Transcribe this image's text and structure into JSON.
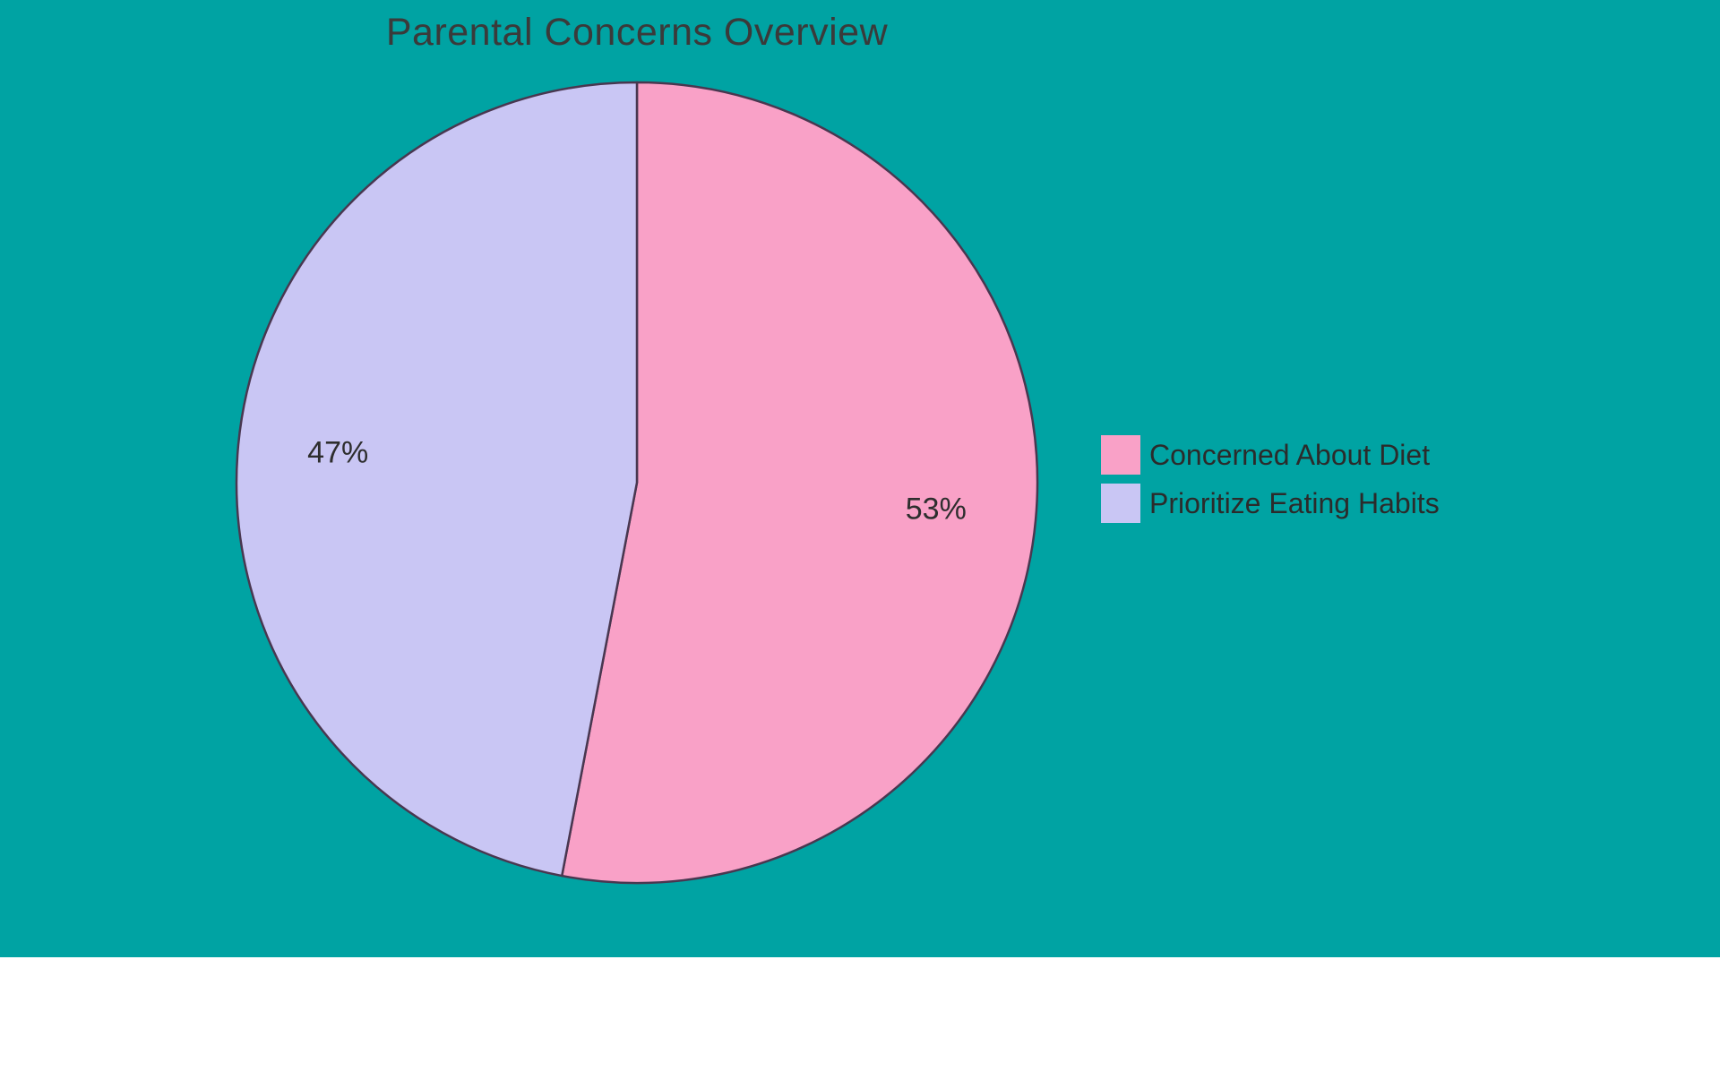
{
  "chart_data": {
    "type": "pie",
    "title": "Parental Concerns Overview",
    "slices": [
      {
        "label": "Concerned About Diet",
        "value": 53,
        "percent_label": "53%",
        "color": "#F9A1C7"
      },
      {
        "label": "Prioritize Eating Habits",
        "value": 47,
        "percent_label": "47%",
        "color": "#C9C6F4"
      }
    ],
    "start_angle_deg": -90,
    "direction": "clockwise",
    "legend_position": "right",
    "background_color": "#00A3A3",
    "slice_stroke_color": "#493750",
    "title_color": "#3A3A3A",
    "label_color": "#2E2E2E",
    "legend_text_color": "#2B2B2B"
  }
}
